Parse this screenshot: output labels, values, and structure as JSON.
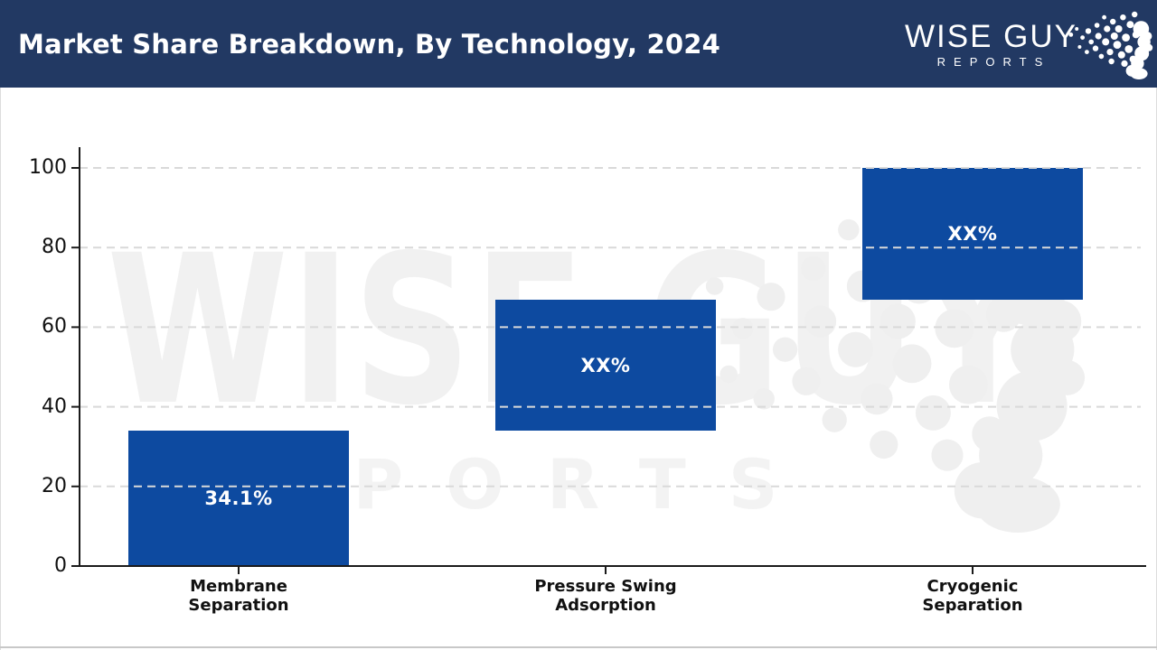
{
  "header": {
    "title": "Market Share Breakdown, By Technology, 2024",
    "logo": {
      "line1": "WISE GUY",
      "line2": "REPORTS"
    }
  },
  "watermark": {
    "line1": "WISE GUY",
    "line2": "REPORTS"
  },
  "chart_data": {
    "type": "bar",
    "subtype": "waterfall (floating stacked segments)",
    "title": "Market Share Breakdown, By Technology, 2024",
    "categories": [
      {
        "name": "Membrane Separation",
        "line1": "Membrane",
        "line2": "Separation"
      },
      {
        "name": "Pressure Swing Adsorption",
        "line1": "Pressure Swing",
        "line2": "Adsorption"
      },
      {
        "name": "Cryogenic Separation",
        "line1": "Cryogenic",
        "line2": "Separation"
      }
    ],
    "segments": [
      {
        "category": "Membrane Separation",
        "start": 0,
        "end": 34.1,
        "label": "34.1%"
      },
      {
        "category": "Pressure Swing Adsorption",
        "start": 34.1,
        "end": 66.8,
        "label": "XX%"
      },
      {
        "category": "Cryogenic Separation",
        "start": 66.8,
        "end": 100,
        "label": "XX%"
      }
    ],
    "yticks": [
      0,
      20,
      40,
      60,
      80,
      100
    ],
    "ylim": [
      0,
      100
    ],
    "xlabel": "",
    "ylabel": "",
    "grid": "horizontal dashed",
    "legend": "none",
    "bar_color": "#0d4aa0",
    "bar_label_color": "#ffffff",
    "axis_color": "#1a1a1a",
    "grid_color": "#d9d9d9",
    "header_color": "#223963",
    "watermark_color": "#f1f1f1"
  }
}
